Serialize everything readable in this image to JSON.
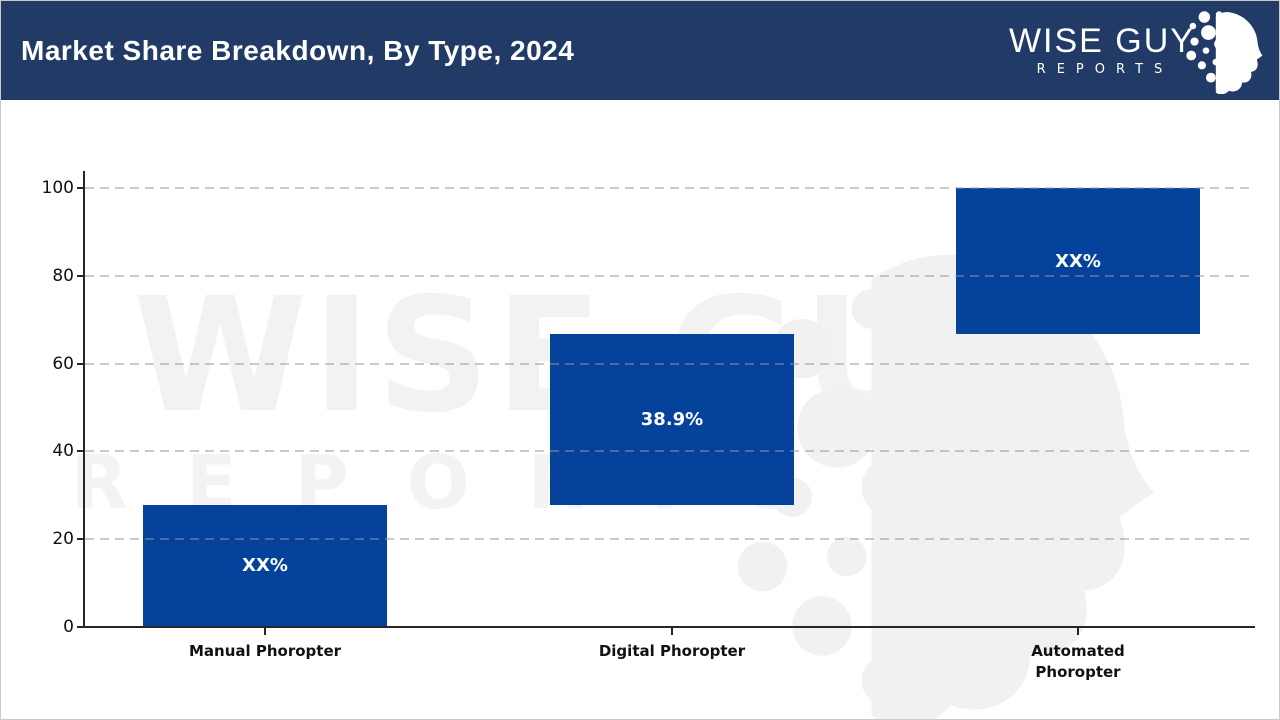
{
  "header": {
    "title": "Market Share Breakdown, By Type, 2024",
    "logo": {
      "line1": "WISE GUY",
      "line2": "REPORTS"
    }
  },
  "watermark": {
    "line1": "WISE GUY",
    "line2": "REPORTS"
  },
  "chart_data": {
    "type": "bar",
    "subtype": "floating-waterfall-segments",
    "title": "Market Share Breakdown, By Type, 2024",
    "categories": [
      "Manual Phoropter",
      "Digital Phoropter",
      "Automated Phoropter"
    ],
    "bars": [
      {
        "category": "Manual Phoropter",
        "start": 0,
        "end": 27.8,
        "value_label": "XX%"
      },
      {
        "category": "Digital Phoropter",
        "start": 27.8,
        "end": 66.7,
        "value_label": "38.9%"
      },
      {
        "category": "Automated Phoropter",
        "start": 66.7,
        "end": 100,
        "value_label": "XX%"
      }
    ],
    "values": [
      27.8,
      38.9,
      33.3
    ],
    "xlabel": "",
    "ylabel": "",
    "ylim": [
      0,
      100
    ],
    "yticks": [
      0,
      20,
      40,
      60,
      80,
      100
    ],
    "grid": {
      "axis": "y",
      "style": "dashed",
      "color": "#d9d9d9",
      "over_bars": true
    },
    "legend": "none",
    "bar_color": "#05429C"
  },
  "colors": {
    "header_bg": "#213A66",
    "bar_blue": "#05429C",
    "axis": "#262626",
    "watermark_gray": "#f2f2f2",
    "page_border": "#c9c9c9"
  }
}
